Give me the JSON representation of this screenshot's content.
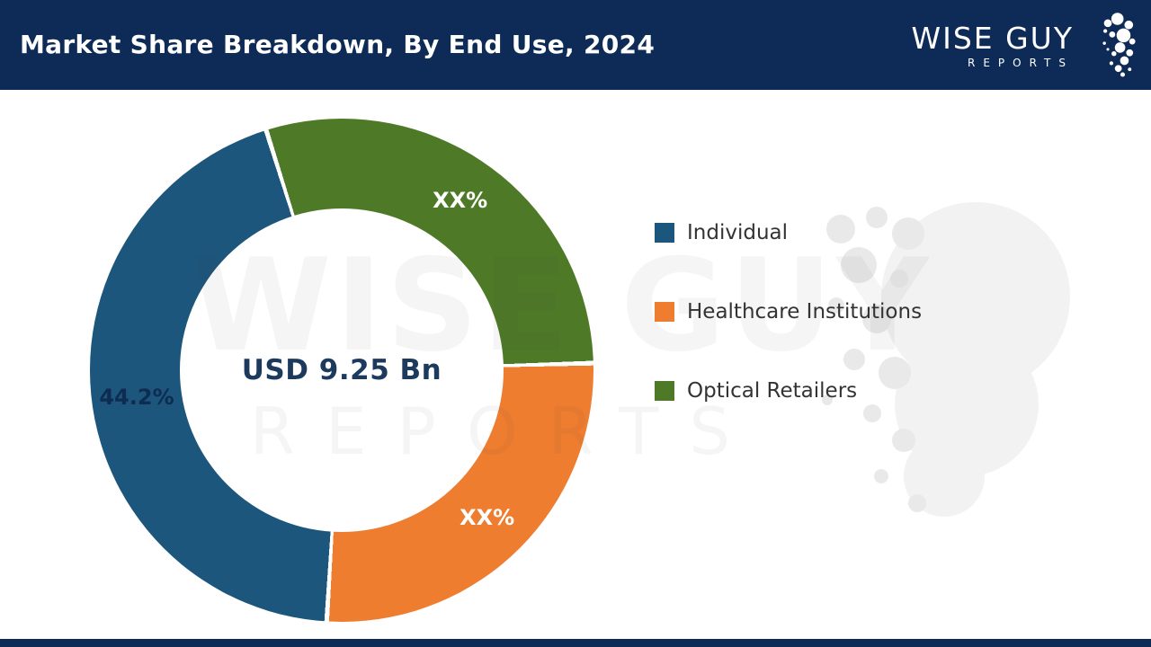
{
  "header": {
    "title": "Market Share Breakdown, By End Use, 2024",
    "logo": {
      "line1": "WISE GUY",
      "line2": "REPORTS"
    }
  },
  "chart_data": {
    "type": "pie",
    "subtype": "donut",
    "title": "Market Share Breakdown, By End Use, 2024",
    "center_label": "USD 9.25 Bn",
    "start_angle_deg": -18,
    "segments": [
      {
        "name": "Optical Retailers",
        "value": 29.4,
        "display_label": "XX%",
        "color": "#4e7a28",
        "label_color": "#ffffff"
      },
      {
        "name": "Healthcare Institutions",
        "value": 26.4,
        "display_label": "XX%",
        "color": "#ee7d2f",
        "label_color": "#ffffff"
      },
      {
        "name": "Individual",
        "value": 44.2,
        "display_label": "44.2%",
        "color": "#1d567c",
        "label_color": "#0e2b50"
      }
    ],
    "legend": [
      {
        "label": "Individual",
        "color": "#1d567c"
      },
      {
        "label": "Healthcare Institutions",
        "color": "#ee7d2f"
      },
      {
        "label": "Optical Retailers",
        "color": "#4e7a28"
      }
    ],
    "legend_position": "right"
  },
  "watermark": {
    "line1": "WISE GUY",
    "line2": "REPORTS"
  }
}
